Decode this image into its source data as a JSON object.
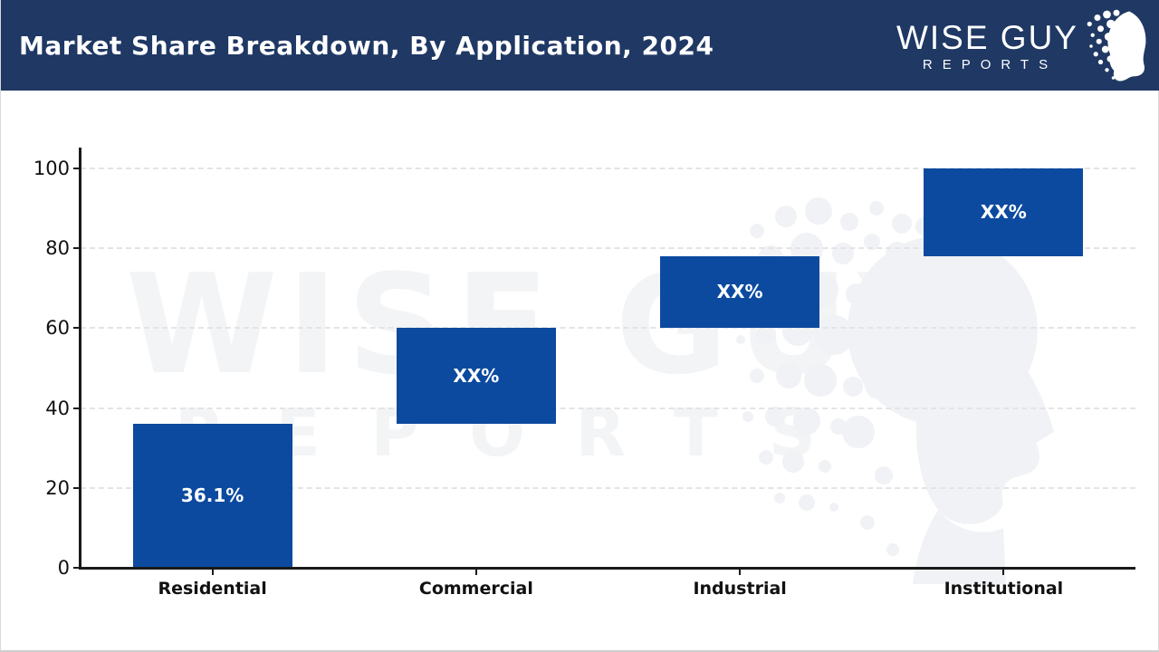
{
  "header": {
    "title": "Market Share Breakdown, By Application, 2024",
    "logo": {
      "line1": "WISE GUY",
      "line2": "REPORTS"
    }
  },
  "watermark": {
    "line1": "WISE GUY",
    "line2": "REPORTS"
  },
  "colors": {
    "header_bg": "#1f3864",
    "bar": "#0b4a9f",
    "bar_label": "#ffffff",
    "axis": "#1a1a1a",
    "grid": "#e4e4e6",
    "watermark": "#f3f4f6"
  },
  "chart_data": {
    "type": "bar",
    "subtype": "waterfall",
    "title": "Market Share Breakdown, By Application, 2024",
    "xlabel": "",
    "ylabel": "",
    "categories": [
      "Residential",
      "Commercial",
      "Industrial",
      "Institutional"
    ],
    "segments": [
      {
        "category": "Residential",
        "start": 0,
        "end": 36.1,
        "label": "36.1%"
      },
      {
        "category": "Commercial",
        "start": 36.1,
        "end": 60.2,
        "label": "XX%"
      },
      {
        "category": "Industrial",
        "start": 60.2,
        "end": 78.1,
        "label": "XX%"
      },
      {
        "category": "Institutional",
        "start": 78.1,
        "end": 100,
        "label": "XX%"
      }
    ],
    "y_ticks": [
      0,
      20,
      40,
      60,
      80,
      100
    ],
    "ylim": [
      0,
      105
    ],
    "grid": "horizontal-dashed",
    "legend": "none",
    "values_masked_note": "All bar labels except Residential are masked as XX% in source image"
  }
}
